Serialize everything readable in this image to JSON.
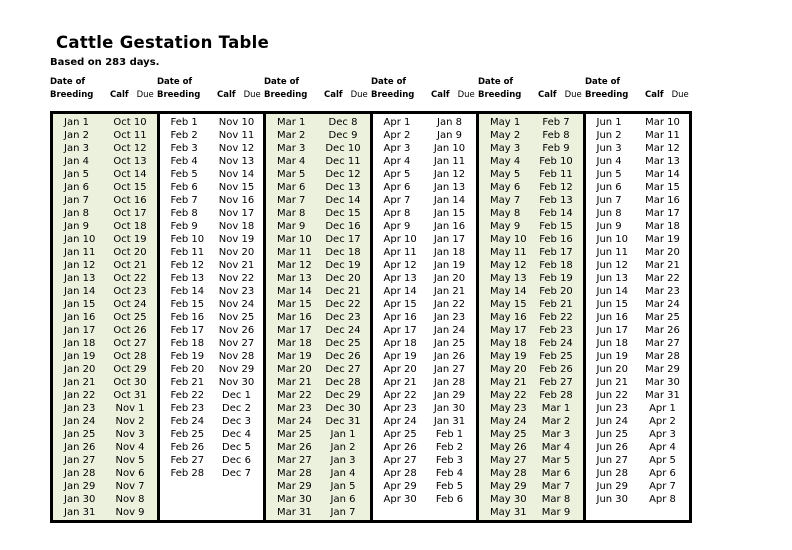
{
  "page": {
    "title": "Cattle Gestation Table",
    "subtitle": "Based on 283 days."
  },
  "header": {
    "date_of": "Date of",
    "breeding": "Breeding",
    "calf": "Calf",
    "due": "Due"
  },
  "colors": {
    "shaded_column": "#ecf1dd",
    "border": "#000000",
    "page_background": "#ffffff",
    "text": "#000000"
  },
  "table": {
    "sections": [
      {
        "month": "January",
        "shaded": true,
        "rows": [
          [
            "Jan 1",
            "Oct 10"
          ],
          [
            "Jan 2",
            "Oct 11"
          ],
          [
            "Jan 3",
            "Oct 12"
          ],
          [
            "Jan 4",
            "Oct 13"
          ],
          [
            "Jan 5",
            "Oct 14"
          ],
          [
            "Jan 6",
            "Oct 15"
          ],
          [
            "Jan 7",
            "Oct 16"
          ],
          [
            "Jan 8",
            "Oct 17"
          ],
          [
            "Jan 9",
            "Oct 18"
          ],
          [
            "Jan 10",
            "Oct 19"
          ],
          [
            "Jan 11",
            "Oct 20"
          ],
          [
            "Jan 12",
            "Oct 21"
          ],
          [
            "Jan 13",
            "Oct 22"
          ],
          [
            "Jan 14",
            "Oct 23"
          ],
          [
            "Jan 15",
            "Oct 24"
          ],
          [
            "Jan 16",
            "Oct 25"
          ],
          [
            "Jan 17",
            "Oct 26"
          ],
          [
            "Jan 18",
            "Oct 27"
          ],
          [
            "Jan 19",
            "Oct 28"
          ],
          [
            "Jan 20",
            "Oct 29"
          ],
          [
            "Jan 21",
            "Oct 30"
          ],
          [
            "Jan 22",
            "Oct 31"
          ],
          [
            "Jan 23",
            "Nov 1"
          ],
          [
            "Jan 24",
            "Nov 2"
          ],
          [
            "Jan 25",
            "Nov 3"
          ],
          [
            "Jan 26",
            "Nov 4"
          ],
          [
            "Jan 27",
            "Nov 5"
          ],
          [
            "Jan 28",
            "Nov 6"
          ],
          [
            "Jan 29",
            "Nov 7"
          ],
          [
            "Jan 30",
            "Nov 8"
          ],
          [
            "Jan 31",
            "Nov 9"
          ]
        ]
      },
      {
        "month": "February",
        "shaded": false,
        "rows": [
          [
            "Feb 1",
            "Nov 10"
          ],
          [
            "Feb 2",
            "Nov 11"
          ],
          [
            "Feb 3",
            "Nov 12"
          ],
          [
            "Feb 4",
            "Nov 13"
          ],
          [
            "Feb 5",
            "Nov 14"
          ],
          [
            "Feb 6",
            "Nov 15"
          ],
          [
            "Feb 7",
            "Nov 16"
          ],
          [
            "Feb 8",
            "Nov 17"
          ],
          [
            "Feb 9",
            "Nov 18"
          ],
          [
            "Feb 10",
            "Nov 19"
          ],
          [
            "Feb 11",
            "Nov 20"
          ],
          [
            "Feb 12",
            "Nov 21"
          ],
          [
            "Feb 13",
            "Nov 22"
          ],
          [
            "Feb 14",
            "Nov 23"
          ],
          [
            "Feb 15",
            "Nov 24"
          ],
          [
            "Feb 16",
            "Nov 25"
          ],
          [
            "Feb 17",
            "Nov 26"
          ],
          [
            "Feb 18",
            "Nov 27"
          ],
          [
            "Feb 19",
            "Nov 28"
          ],
          [
            "Feb 20",
            "Nov 29"
          ],
          [
            "Feb 21",
            "Nov 30"
          ],
          [
            "Feb 22",
            "Dec 1"
          ],
          [
            "Feb 23",
            "Dec 2"
          ],
          [
            "Feb 24",
            "Dec 3"
          ],
          [
            "Feb 25",
            "Dec 4"
          ],
          [
            "Feb 26",
            "Dec 5"
          ],
          [
            "Feb 27",
            "Dec 6"
          ],
          [
            "Feb 28",
            "Dec 7"
          ]
        ]
      },
      {
        "month": "March",
        "shaded": true,
        "rows": [
          [
            "Mar 1",
            "Dec 8"
          ],
          [
            "Mar 2",
            "Dec 9"
          ],
          [
            "Mar 3",
            "Dec 10"
          ],
          [
            "Mar 4",
            "Dec 11"
          ],
          [
            "Mar 5",
            "Dec 12"
          ],
          [
            "Mar 6",
            "Dec 13"
          ],
          [
            "Mar 7",
            "Dec 14"
          ],
          [
            "Mar 8",
            "Dec 15"
          ],
          [
            "Mar 9",
            "Dec 16"
          ],
          [
            "Mar 10",
            "Dec 17"
          ],
          [
            "Mar 11",
            "Dec 18"
          ],
          [
            "Mar 12",
            "Dec 19"
          ],
          [
            "Mar 13",
            "Dec 20"
          ],
          [
            "Mar 14",
            "Dec 21"
          ],
          [
            "Mar 15",
            "Dec 22"
          ],
          [
            "Mar 16",
            "Dec 23"
          ],
          [
            "Mar 17",
            "Dec 24"
          ],
          [
            "Mar 18",
            "Dec 25"
          ],
          [
            "Mar 19",
            "Dec 26"
          ],
          [
            "Mar 20",
            "Dec 27"
          ],
          [
            "Mar 21",
            "Dec 28"
          ],
          [
            "Mar 22",
            "Dec 29"
          ],
          [
            "Mar 23",
            "Dec 30"
          ],
          [
            "Mar 24",
            "Dec 31"
          ],
          [
            "Mar 25",
            "Jan 1"
          ],
          [
            "Mar 26",
            "Jan 2"
          ],
          [
            "Mar 27",
            "Jan 3"
          ],
          [
            "Mar 28",
            "Jan 4"
          ],
          [
            "Mar 29",
            "Jan 5"
          ],
          [
            "Mar 30",
            "Jan 6"
          ],
          [
            "Mar 31",
            "Jan 7"
          ]
        ]
      },
      {
        "month": "April",
        "shaded": false,
        "rows": [
          [
            "Apr 1",
            "Jan 8"
          ],
          [
            "Apr 2",
            "Jan 9"
          ],
          [
            "Apr 3",
            "Jan 10"
          ],
          [
            "Apr 4",
            "Jan 11"
          ],
          [
            "Apr 5",
            "Jan 12"
          ],
          [
            "Apr 6",
            "Jan 13"
          ],
          [
            "Apr 7",
            "Jan 14"
          ],
          [
            "Apr 8",
            "Jan 15"
          ],
          [
            "Apr 9",
            "Jan 16"
          ],
          [
            "Apr 10",
            "Jan 17"
          ],
          [
            "Apr 11",
            "Jan 18"
          ],
          [
            "Apr 12",
            "Jan 19"
          ],
          [
            "Apr 13",
            "Jan 20"
          ],
          [
            "Apr 14",
            "Jan 21"
          ],
          [
            "Apr 15",
            "Jan 22"
          ],
          [
            "Apr 16",
            "Jan 23"
          ],
          [
            "Apr 17",
            "Jan 24"
          ],
          [
            "Apr 18",
            "Jan 25"
          ],
          [
            "Apr 19",
            "Jan 26"
          ],
          [
            "Apr 20",
            "Jan 27"
          ],
          [
            "Apr 21",
            "Jan 28"
          ],
          [
            "Apr 22",
            "Jan 29"
          ],
          [
            "Apr 23",
            "Jan 30"
          ],
          [
            "Apr 24",
            "Jan 31"
          ],
          [
            "Apr 25",
            "Feb 1"
          ],
          [
            "Apr 26",
            "Feb 2"
          ],
          [
            "Apr 27",
            "Feb 3"
          ],
          [
            "Apr 28",
            "Feb 4"
          ],
          [
            "Apr 29",
            "Feb 5"
          ],
          [
            "Apr 30",
            "Feb 6"
          ]
        ]
      },
      {
        "month": "May",
        "shaded": true,
        "rows": [
          [
            "May 1",
            "Feb 7"
          ],
          [
            "May 2",
            "Feb 8"
          ],
          [
            "May 3",
            "Feb 9"
          ],
          [
            "May 4",
            "Feb 10"
          ],
          [
            "May 5",
            "Feb 11"
          ],
          [
            "May 6",
            "Feb 12"
          ],
          [
            "May 7",
            "Feb 13"
          ],
          [
            "May 8",
            "Feb 14"
          ],
          [
            "May 9",
            "Feb 15"
          ],
          [
            "May 10",
            "Feb 16"
          ],
          [
            "May 11",
            "Feb 17"
          ],
          [
            "May 12",
            "Feb 18"
          ],
          [
            "May 13",
            "Feb 19"
          ],
          [
            "May 14",
            "Feb 20"
          ],
          [
            "May 15",
            "Feb 21"
          ],
          [
            "May 16",
            "Feb 22"
          ],
          [
            "May 17",
            "Feb 23"
          ],
          [
            "May 18",
            "Feb 24"
          ],
          [
            "May 19",
            "Feb 25"
          ],
          [
            "May 20",
            "Feb 26"
          ],
          [
            "May 21",
            "Feb 27"
          ],
          [
            "May 22",
            "Feb 28"
          ],
          [
            "May 23",
            "Mar 1"
          ],
          [
            "May 24",
            "Mar 2"
          ],
          [
            "May 25",
            "Mar 3"
          ],
          [
            "May 26",
            "Mar 4"
          ],
          [
            "May 27",
            "Mar 5"
          ],
          [
            "May 28",
            "Mar 6"
          ],
          [
            "May 29",
            "Mar 7"
          ],
          [
            "May 30",
            "Mar 8"
          ],
          [
            "May 31",
            "Mar 9"
          ]
        ]
      },
      {
        "month": "June",
        "shaded": false,
        "rows": [
          [
            "Jun 1",
            "Mar 10"
          ],
          [
            "Jun 2",
            "Mar 11"
          ],
          [
            "Jun 3",
            "Mar 12"
          ],
          [
            "Jun 4",
            "Mar 13"
          ],
          [
            "Jun 5",
            "Mar 14"
          ],
          [
            "Jun 6",
            "Mar 15"
          ],
          [
            "Jun 7",
            "Mar 16"
          ],
          [
            "Jun 8",
            "Mar 17"
          ],
          [
            "Jun 9",
            "Mar 18"
          ],
          [
            "Jun 10",
            "Mar 19"
          ],
          [
            "Jun 11",
            "Mar 20"
          ],
          [
            "Jun 12",
            "Mar 21"
          ],
          [
            "Jun 13",
            "Mar 22"
          ],
          [
            "Jun 14",
            "Mar 23"
          ],
          [
            "Jun 15",
            "Mar 24"
          ],
          [
            "Jun 16",
            "Mar 25"
          ],
          [
            "Jun 17",
            "Mar 26"
          ],
          [
            "Jun 18",
            "Mar 27"
          ],
          [
            "Jun 19",
            "Mar 28"
          ],
          [
            "Jun 20",
            "Mar 29"
          ],
          [
            "Jun 21",
            "Mar 30"
          ],
          [
            "Jun 22",
            "Mar 31"
          ],
          [
            "Jun 23",
            "Apr 1"
          ],
          [
            "Jun 24",
            "Apr 2"
          ],
          [
            "Jun 25",
            "Apr 3"
          ],
          [
            "Jun 26",
            "Apr 4"
          ],
          [
            "Jun 27",
            "Apr 5"
          ],
          [
            "Jun 28",
            "Apr 6"
          ],
          [
            "Jun 29",
            "Apr 7"
          ],
          [
            "Jun 30",
            "Apr 8"
          ]
        ]
      }
    ]
  }
}
